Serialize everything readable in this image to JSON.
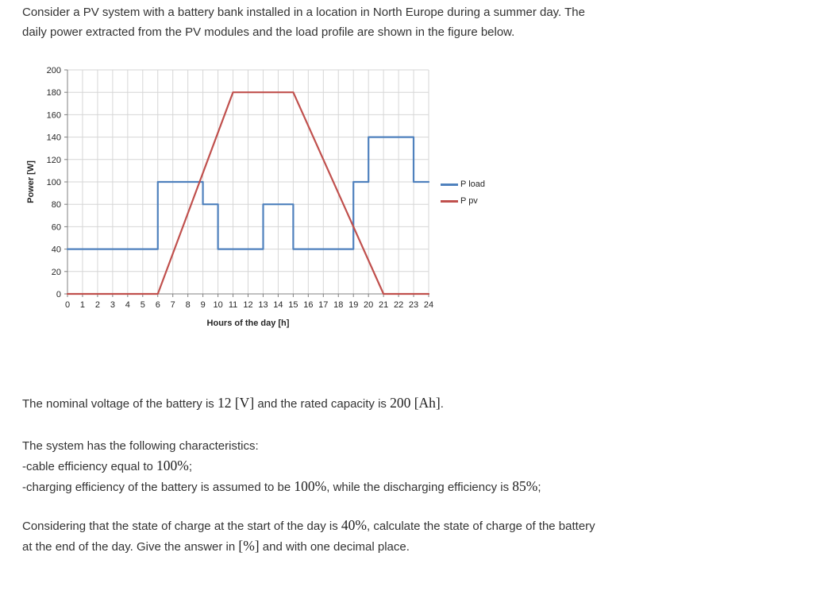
{
  "intro": {
    "line1": "Consider a PV system with a battery bank installed in a location in North Europe during a summer day. The",
    "line2": "daily power extracted from the PV modules and the load profile are shown in the figure below."
  },
  "chart_data": {
    "type": "line",
    "title": "",
    "xlabel": "Hours of the day [h]",
    "ylabel": "Power [W]",
    "xlim": [
      0,
      24
    ],
    "ylim": [
      0,
      200
    ],
    "x_ticks": [
      0,
      1,
      2,
      3,
      4,
      5,
      6,
      7,
      8,
      9,
      10,
      11,
      12,
      13,
      14,
      15,
      16,
      17,
      18,
      19,
      20,
      21,
      22,
      23,
      24
    ],
    "y_ticks": [
      0,
      20,
      40,
      60,
      80,
      100,
      120,
      140,
      160,
      180,
      200
    ],
    "grid": true,
    "grid_color": "#d6d6d6",
    "axis_color": "#808080",
    "tick_label_color": "#262626",
    "legend_position": "right",
    "series": [
      {
        "name": "P load",
        "color": "#4f81bd",
        "points": [
          [
            0,
            40
          ],
          [
            6,
            40
          ],
          [
            6,
            100
          ],
          [
            9,
            100
          ],
          [
            9,
            80
          ],
          [
            10,
            80
          ],
          [
            10,
            40
          ],
          [
            13,
            40
          ],
          [
            13,
            80
          ],
          [
            15,
            80
          ],
          [
            15,
            40
          ],
          [
            19,
            40
          ],
          [
            19,
            100
          ],
          [
            20,
            100
          ],
          [
            20,
            140
          ],
          [
            23,
            140
          ],
          [
            23,
            100
          ],
          [
            24,
            100
          ]
        ]
      },
      {
        "name": "P pv",
        "color": "#c0504d",
        "points": [
          [
            0,
            0
          ],
          [
            6,
            0
          ],
          [
            11,
            180
          ],
          [
            15,
            180
          ],
          [
            21,
            0
          ],
          [
            24,
            0
          ]
        ]
      }
    ]
  },
  "battery": {
    "pre": "The nominal voltage of the battery is ",
    "voltage": "12 [V]",
    "mid": " and the rated capacity is ",
    "capacity": "200 [Ah]",
    "end": "."
  },
  "characteristics": {
    "title": "The system has the following characteristics:",
    "item1_pre": "-cable efficiency equal to ",
    "item1_value": "100%",
    "item1_end": ";",
    "item2_pre": "-charging efficiency of the battery is assumed to be ",
    "item2_value1": "100%",
    "item2_mid": ", while the discharging efficiency is ",
    "item2_value2": "85%",
    "item2_end": ";"
  },
  "question": {
    "line1_pre": "Considering that the state of charge at the start of the day is ",
    "soc_start": "40%",
    "line1_end": ", calculate the state of charge of the battery",
    "line2_pre": "at the end of the day. Give the answer in ",
    "unit": "[%]",
    "line2_end": " and with one decimal place."
  }
}
